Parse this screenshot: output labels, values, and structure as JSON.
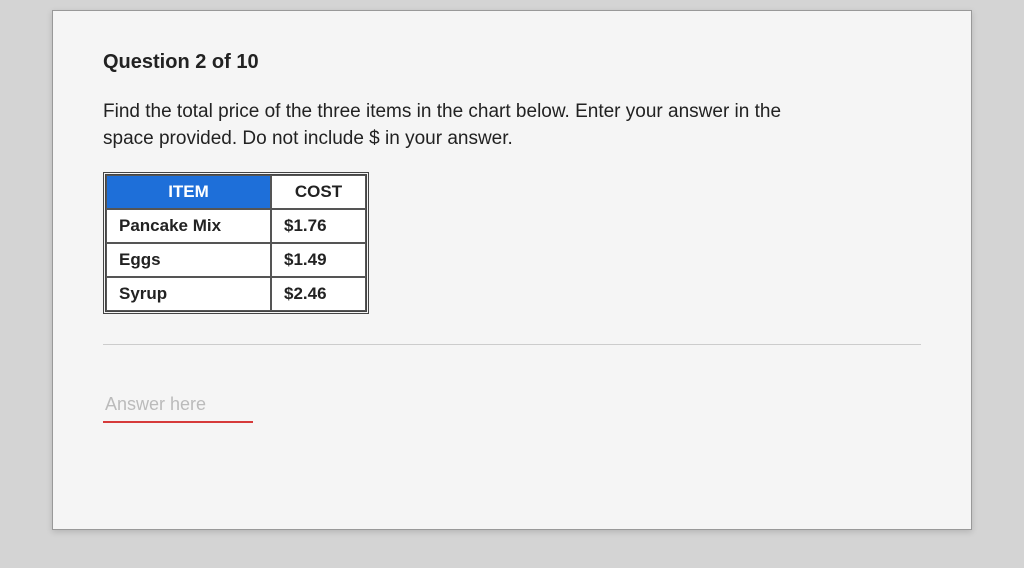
{
  "question": {
    "header": "Question 2 of 10",
    "prompt": "Find the total price of the three items in the chart below. Enter your answer in the space provided. Do not include $ in your answer."
  },
  "table": {
    "columns": [
      "ITEM",
      "COST"
    ],
    "header_colors": [
      "#1e6fd9",
      "#ffffff"
    ],
    "header_text_colors": [
      "#ffffff",
      "#222222"
    ],
    "rows": [
      {
        "item": "Pancake Mix",
        "cost": "$1.76"
      },
      {
        "item": "Eggs",
        "cost": "$1.49"
      },
      {
        "item": "Syrup",
        "cost": "$2.46"
      }
    ],
    "border_color": "#555555",
    "cell_background": "#ffffff"
  },
  "answer": {
    "placeholder": "Answer here",
    "value": "",
    "underline_color": "#d63a3a"
  },
  "colors": {
    "page_background": "#d4d4d4",
    "panel_background": "#f5f5f5",
    "text": "#222222",
    "divider": "#cccccc"
  }
}
